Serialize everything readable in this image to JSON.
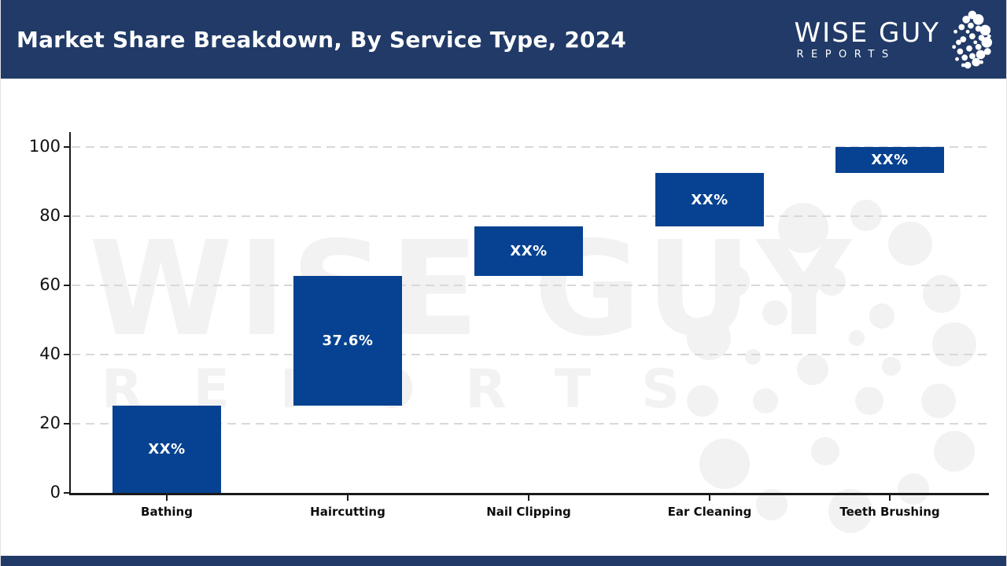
{
  "header": {
    "title": "Market Share Breakdown, By Service Type, 2024",
    "bg_color": "#213A67",
    "logo": {
      "line1": "WISE GUY",
      "line2": "REPORTS"
    }
  },
  "watermark": {
    "line1": "WISE GUY",
    "line2": "REPORTS"
  },
  "footer": {
    "bg_color": "#213A67"
  },
  "colors": {
    "bar": "#064291",
    "bar_label": "#FFFFFF",
    "gridline": "#D8D8D8",
    "axis": "#1A1A1A",
    "tick_label": "#111111",
    "category_label": "#0D0D0D"
  },
  "chart_data": {
    "type": "bar",
    "subtype": "waterfall",
    "title": "Market Share Breakdown, By Service Type, 2024",
    "categories": [
      "Bathing",
      "Haircutting",
      "Nail Clipping",
      "Ear Cleaning",
      "Teeth Brushing"
    ],
    "segments": [
      {
        "category": "Bathing",
        "start": 0,
        "end": 25.2,
        "label": "XX%"
      },
      {
        "category": "Haircutting",
        "start": 25.2,
        "end": 62.8,
        "label": "37.6%"
      },
      {
        "category": "Nail Clipping",
        "start": 62.8,
        "end": 77.0,
        "label": "XX%"
      },
      {
        "category": "Ear Cleaning",
        "start": 77.0,
        "end": 92.4,
        "label": "XX%"
      },
      {
        "category": "Teeth Brushing",
        "start": 92.4,
        "end": 100,
        "label": "XX%"
      }
    ],
    "yticks": [
      0,
      20,
      40,
      60,
      80,
      100
    ],
    "ylim": [
      0,
      100
    ],
    "xlabel": "",
    "ylabel": "",
    "grid": "horizontal-dashed",
    "legend": "none"
  }
}
